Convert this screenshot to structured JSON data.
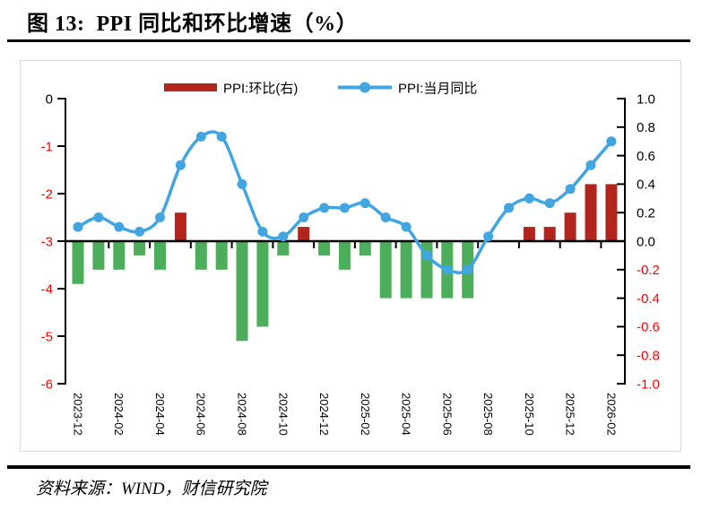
{
  "page": {
    "title": "图 13:  PPI 同比和环比增速（%）",
    "source": "资料来源：WIND，财信研究院"
  },
  "chart_data": {
    "type": "combo-bar-line",
    "title": "PPI 同比和环比增速（%）",
    "categories": [
      "2023-12",
      "2024-01",
      "2024-02",
      "2024-03",
      "2024-04",
      "2024-05",
      "2024-06",
      "2024-07",
      "2024-08",
      "2024-09",
      "2024-10",
      "2024-11",
      "2024-12",
      "2025-01",
      "2025-02",
      "2025-03",
      "2025-04",
      "2025-05",
      "2025-06",
      "2025-07",
      "2025-08",
      "2025-09",
      "2025-10",
      "2025-11",
      "2025-12",
      "2026-01",
      "2026-02"
    ],
    "x_axis": {
      "tick_label_every": 2,
      "label_rotation_deg": 90,
      "tick_labels": [
        "2023-12",
        "2024-02",
        "2024-04",
        "2024-06",
        "2024-08",
        "2024-10",
        "2024-12",
        "2025-02",
        "2025-04",
        "2025-06",
        "2025-08",
        "2025-10",
        "2025-12",
        "2026-02"
      ]
    },
    "left_axis": {
      "min": -6,
      "max": 0,
      "tick_labels": [
        "0",
        "-1",
        "-2",
        "-3",
        "-4",
        "-5",
        "-6"
      ],
      "for_series": "PPI:当月同比"
    },
    "right_axis": {
      "min": -1.0,
      "max": 1.0,
      "tick_labels": [
        "1.0",
        "0.8",
        "0.6",
        "0.4",
        "0.2",
        "0.0",
        "-0.2",
        "-0.4",
        "-0.6",
        "-0.8",
        "-1.0"
      ],
      "for_series": "PPI:环比(右)"
    },
    "series": [
      {
        "name": "PPI:环比(右)",
        "type": "bar",
        "axis": "right",
        "color_positive": "#b2241c",
        "color_negative": "#4cad5a",
        "values": [
          -0.3,
          -0.2,
          -0.2,
          -0.1,
          -0.2,
          0.2,
          -0.2,
          -0.2,
          -0.7,
          -0.6,
          -0.1,
          0.1,
          -0.1,
          -0.2,
          -0.1,
          -0.4,
          -0.4,
          -0.4,
          -0.4,
          -0.4,
          0.0,
          0.0,
          0.1,
          0.1,
          0.2,
          0.4,
          0.4
        ]
      },
      {
        "name": "PPI:当月同比",
        "type": "line",
        "axis": "left",
        "color": "#41a5e2",
        "smooth": true,
        "marker": "circle",
        "values": [
          -2.7,
          -2.5,
          -2.7,
          -2.8,
          -2.5,
          -1.4,
          -0.8,
          -0.8,
          -1.8,
          -2.8,
          -2.9,
          -2.5,
          -2.3,
          -2.3,
          -2.2,
          -2.5,
          -2.7,
          -3.3,
          -3.6,
          -3.6,
          -2.9,
          -2.3,
          -2.1,
          -2.2,
          -1.9,
          -1.4,
          -0.9
        ]
      }
    ],
    "legend": {
      "position": "top",
      "entries": [
        "PPI:环比(右)",
        "PPI:当月同比"
      ]
    },
    "grid": false,
    "axis_label_colors": {
      "non_negative": "#000000",
      "negative": "#ff0000"
    }
  }
}
